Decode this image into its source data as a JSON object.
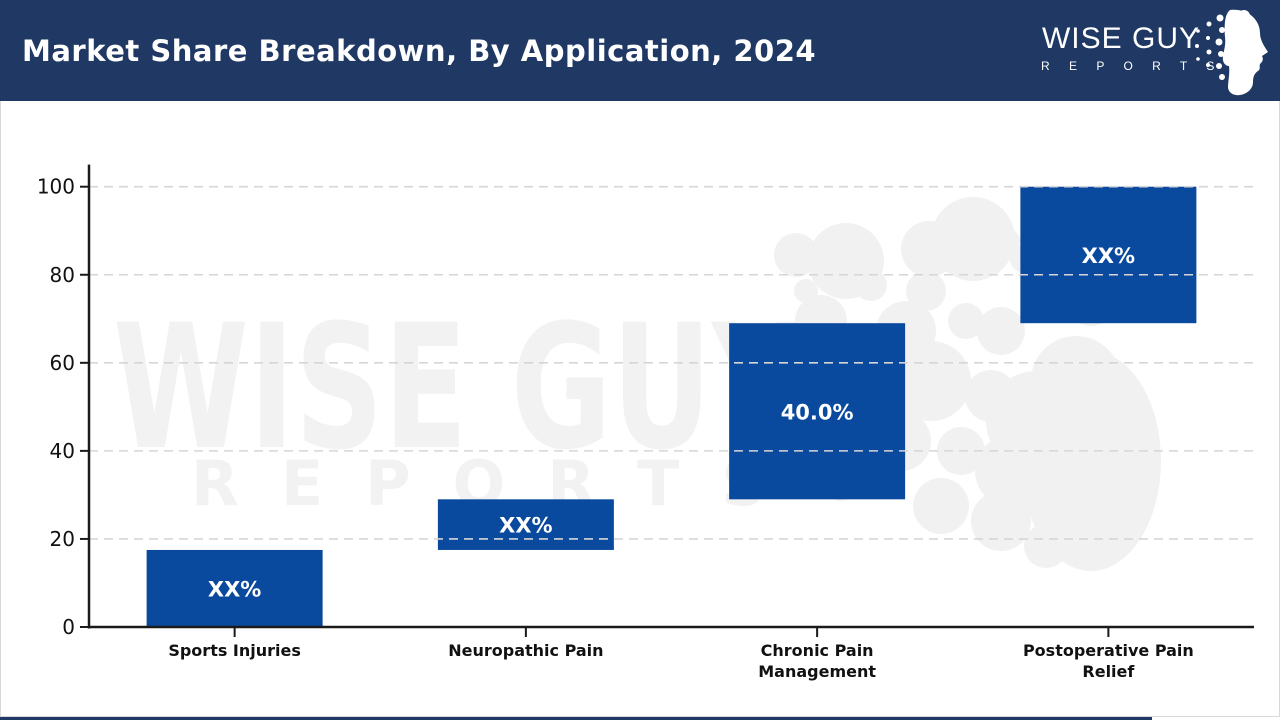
{
  "header": {
    "title": "Market Share Breakdown, By Application, 2024",
    "logo": {
      "brand": "WISE GUY",
      "sub": "R E P O R T S"
    }
  },
  "watermark": {
    "brand": "WISE GUY",
    "sub": "R E P O R T S"
  },
  "colors": {
    "header_navy": "#1f3864",
    "bar_blue": "#0a4a9e",
    "bar_label": "#ffffff",
    "gridline": "#d6d6d6",
    "axis": "#1a1a1a",
    "tick_label": "#111111",
    "watermark": "#f2f2f3"
  },
  "chart_data": {
    "type": "bar",
    "subtype": "floating-waterfall",
    "title": "Market Share Breakdown, By Application, 2024",
    "categories": [
      "Sports Injuries",
      "Neuropathic Pain",
      "Chronic Pain\nManagement",
      "Postoperative Pain\nRelief"
    ],
    "segments": [
      {
        "category": "Sports Injuries",
        "start": 0,
        "end": 17.5,
        "label": "XX%"
      },
      {
        "category": "Neuropathic Pain",
        "start": 17.5,
        "end": 29,
        "label": "XX%"
      },
      {
        "category": "Chronic Pain Management",
        "start": 29,
        "end": 69,
        "label": "40.0%"
      },
      {
        "category": "Postoperative Pain Relief",
        "start": 69,
        "end": 100,
        "label": "XX%"
      }
    ],
    "yticks": [
      0,
      20,
      40,
      60,
      80,
      100
    ],
    "ylim": [
      0,
      105
    ],
    "xlabel": "",
    "ylabel": "",
    "grid": "dashed-horizontal-over-bars",
    "legend": "none"
  }
}
